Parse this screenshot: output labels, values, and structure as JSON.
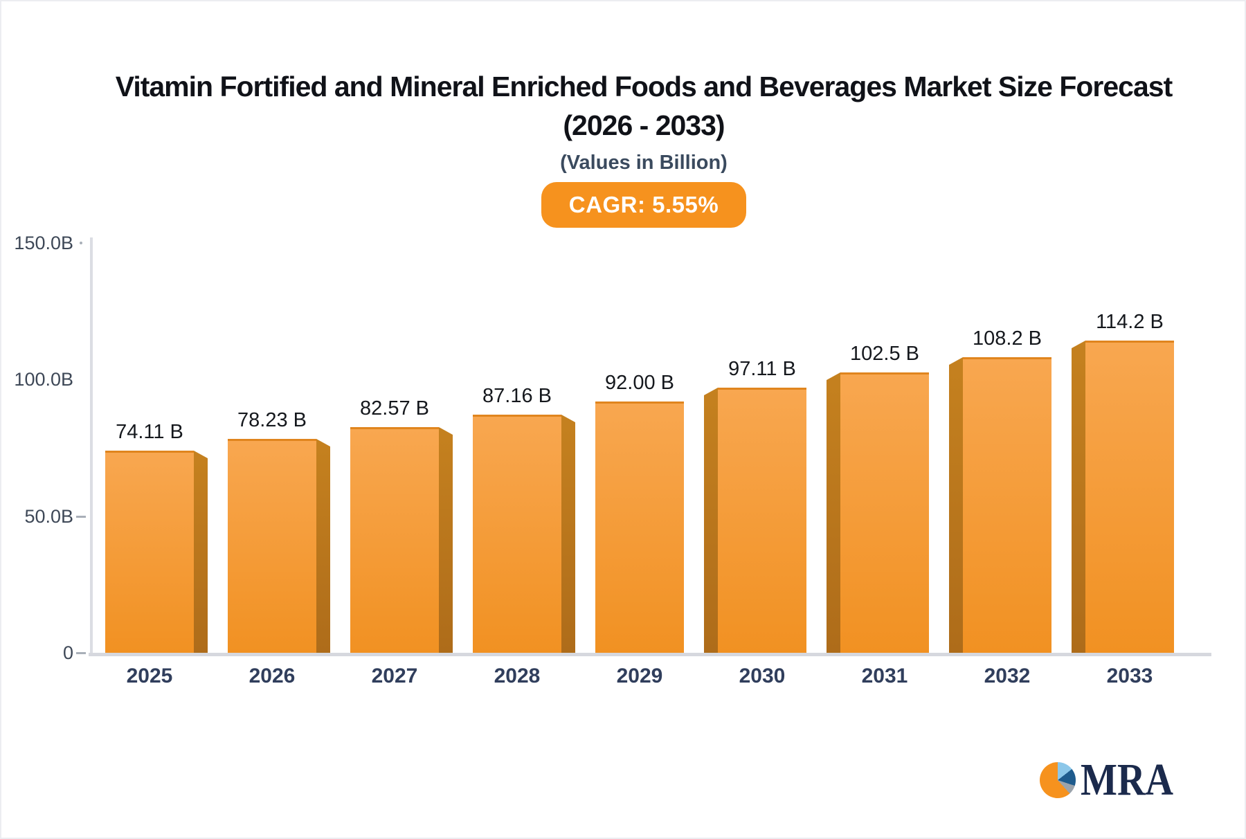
{
  "header": {
    "title_line1": "Vitamin Fortified and Mineral Enriched Foods and Beverages Market Size Forecast",
    "title_line2": "(2026 - 2033)",
    "subtitle": "(Values in Billion)",
    "badge_label": "CAGR: 5.55%",
    "badge_color": "#F6921E"
  },
  "chart_data": {
    "type": "bar",
    "title": "Vitamin Fortified and Mineral Enriched Foods and Beverages Market Size Forecast (2026 - 2033)",
    "subtitle": "(Values in Billion)",
    "cagr": "5.55%",
    "categories": [
      "2025",
      "2026",
      "2027",
      "2028",
      "2029",
      "2030",
      "2031",
      "2032",
      "2033"
    ],
    "values": [
      74.11,
      78.23,
      82.57,
      87.16,
      92.0,
      97.11,
      102.5,
      108.2,
      114.2
    ],
    "value_labels": [
      "74.11 B",
      "78.23 B",
      "82.57 B",
      "87.16 B",
      "92.00 B",
      "97.11 B",
      "102.5 B",
      "108.2 B",
      "114.2 B"
    ],
    "xlabel": "",
    "ylabel": "",
    "ylim": [
      0,
      150
    ],
    "yticks": [
      {
        "label": "150.0B",
        "value": 150,
        "tick": "dot"
      },
      {
        "label": "100.0B",
        "value": 100,
        "tick": "none"
      },
      {
        "label": "50.0B",
        "value": 50,
        "tick": "dash"
      },
      {
        "label": "0",
        "value": 0,
        "tick": "dash"
      }
    ],
    "grid": false,
    "legend": "none",
    "bar_style": "3d-perspective-center-vanishing",
    "colors": {
      "bar_front_top": "#F8A750",
      "bar_front_bottom": "#F19122",
      "bar_side_top": "#C5811F",
      "bar_side_bottom": "#AE6C1A",
      "bar_top_edge": "#E0851E",
      "axis": "#D6D8DE",
      "value_label": "#15181D",
      "axis_label": "#3E4857",
      "category_label": "#303E5C"
    }
  },
  "logo": {
    "text": "MRA",
    "text_color": "#1B2A4C",
    "pie": {
      "orange": "#F6921E",
      "light_blue": "#8CC7E9",
      "dark_blue": "#1E5B8D",
      "gray": "#9BA3AB"
    }
  }
}
